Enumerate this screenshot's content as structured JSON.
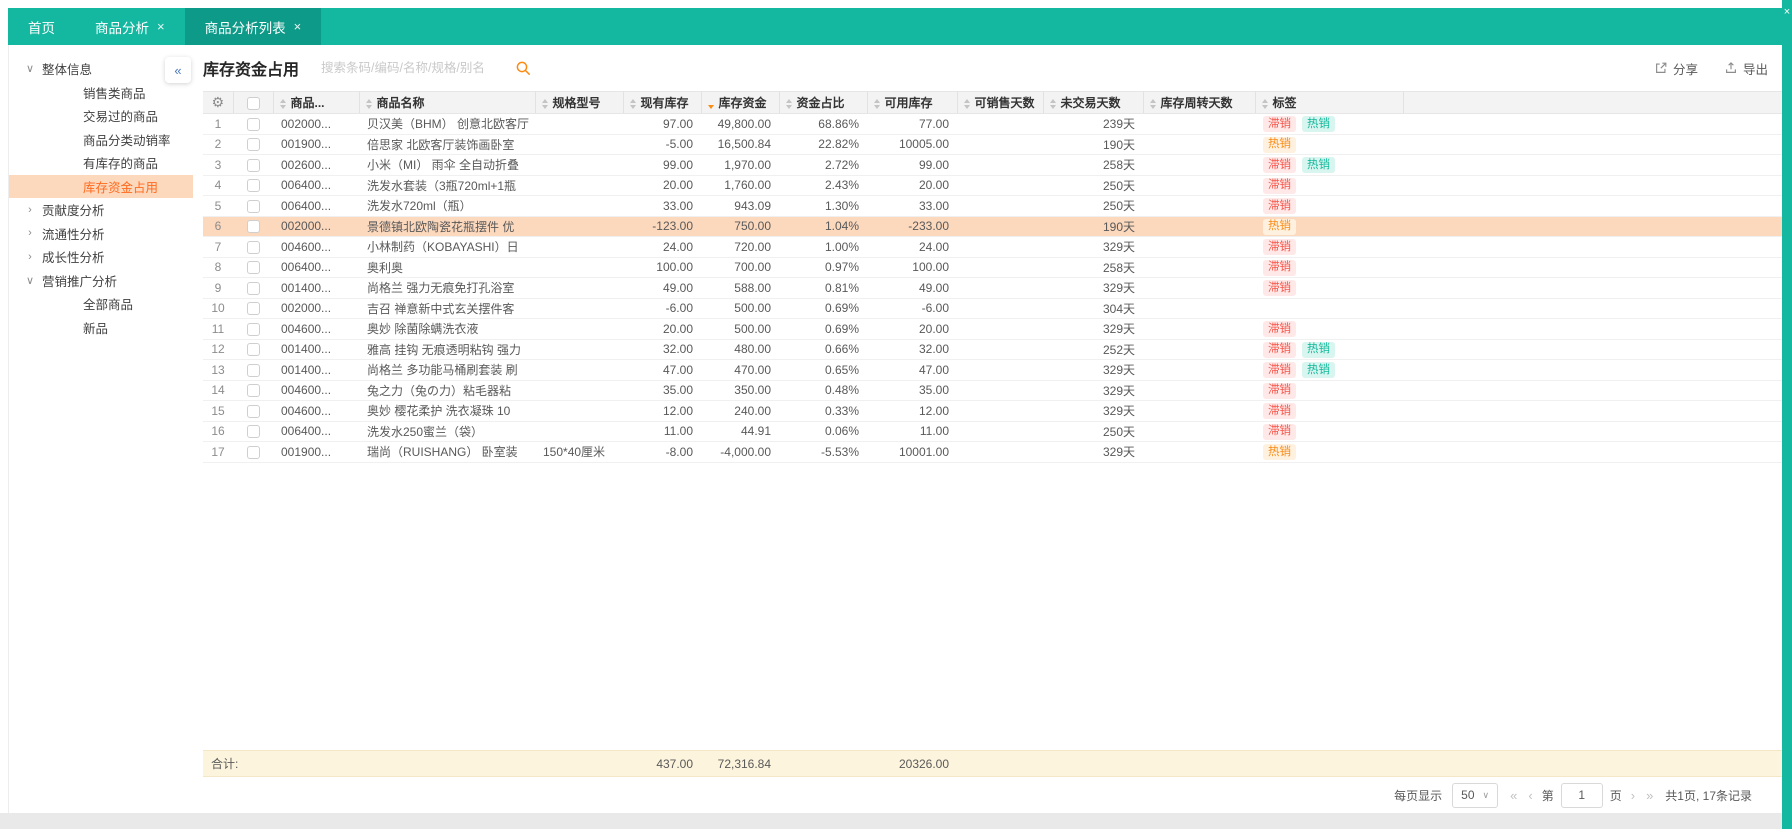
{
  "topbar": {
    "tabs": [
      {
        "label": "首页",
        "closable": false,
        "active": false
      },
      {
        "label": "商品分析",
        "closable": true,
        "active": false
      },
      {
        "label": "商品分析列表",
        "closable": true,
        "active": true
      }
    ],
    "panel_close": "×"
  },
  "sidebar": {
    "collapse_icon": "«",
    "items": [
      {
        "label": "整体信息",
        "level": 0,
        "chevron": "down",
        "active": false
      },
      {
        "label": "销售类商品",
        "level": 1,
        "chevron": "none",
        "active": false
      },
      {
        "label": "交易过的商品",
        "level": 1,
        "chevron": "none",
        "active": false
      },
      {
        "label": "商品分类动销率",
        "level": 1,
        "chevron": "none",
        "active": false
      },
      {
        "label": "有库存的商品",
        "level": 1,
        "chevron": "none",
        "active": false
      },
      {
        "label": "库存资金占用",
        "level": 1,
        "chevron": "none",
        "active": true
      },
      {
        "label": "贡献度分析",
        "level": 0,
        "chevron": "right",
        "active": false
      },
      {
        "label": "流通性分析",
        "level": 0,
        "chevron": "right",
        "active": false
      },
      {
        "label": "成长性分析",
        "level": 0,
        "chevron": "right",
        "active": false
      },
      {
        "label": "营销推广分析",
        "level": 0,
        "chevron": "down",
        "active": false
      },
      {
        "label": "全部商品",
        "level": 1,
        "chevron": "none",
        "active": false
      },
      {
        "label": "新品",
        "level": 1,
        "chevron": "none",
        "active": false
      }
    ]
  },
  "header": {
    "title": "库存资金占用",
    "search_placeholder": "搜索条码/编码/名称/规格/别名",
    "share_label": "分享",
    "export_label": "导出"
  },
  "table": {
    "columns": [
      {
        "label": ""
      },
      {
        "label": ""
      },
      {
        "label": "商品..."
      },
      {
        "label": "商品名称"
      },
      {
        "label": "规格型号"
      },
      {
        "label": "现有库存"
      },
      {
        "label": "库存资金"
      },
      {
        "label": "资金占比"
      },
      {
        "label": "可用库存"
      },
      {
        "label": "可销售天数"
      },
      {
        "label": "未交易天数"
      },
      {
        "label": "库存周转天数"
      },
      {
        "label": "标签"
      }
    ],
    "sorted_column": "库存资金",
    "sorted_direction": "desc",
    "rows": [
      {
        "idx": "1",
        "code": "002000...",
        "name": "贝汉美（BHM） 创意北欧客厅",
        "spec": "",
        "stock": "97.00",
        "funds": "49,800.00",
        "ratio": "68.86%",
        "avail": "77.00",
        "sell_days": "",
        "no_trade_days": "239天",
        "turnover_days": "",
        "highlight": false,
        "tags": [
          {
            "label": "滞销",
            "style": "red"
          },
          {
            "label": "热销",
            "style": "teal"
          }
        ]
      },
      {
        "idx": "2",
        "code": "001900...",
        "name": "倍思家 北欧客厅装饰画卧室",
        "spec": "",
        "stock": "-5.00",
        "funds": "16,500.84",
        "ratio": "22.82%",
        "avail": "10005.00",
        "sell_days": "",
        "no_trade_days": "190天",
        "turnover_days": "",
        "highlight": false,
        "tags": [
          {
            "label": "热销",
            "style": "orange"
          }
        ]
      },
      {
        "idx": "3",
        "code": "002600...",
        "name": "小米（MI） 雨伞 全自动折叠",
        "spec": "",
        "stock": "99.00",
        "funds": "1,970.00",
        "ratio": "2.72%",
        "avail": "99.00",
        "sell_days": "",
        "no_trade_days": "258天",
        "turnover_days": "",
        "highlight": false,
        "tags": [
          {
            "label": "滞销",
            "style": "red"
          },
          {
            "label": "热销",
            "style": "teal"
          }
        ]
      },
      {
        "idx": "4",
        "code": "006400...",
        "name": "洗发水套装（3瓶720ml+1瓶",
        "spec": "",
        "stock": "20.00",
        "funds": "1,760.00",
        "ratio": "2.43%",
        "avail": "20.00",
        "sell_days": "",
        "no_trade_days": "250天",
        "turnover_days": "",
        "highlight": false,
        "tags": [
          {
            "label": "滞销",
            "style": "red"
          }
        ]
      },
      {
        "idx": "5",
        "code": "006400...",
        "name": "洗发水720ml（瓶）",
        "spec": "",
        "stock": "33.00",
        "funds": "943.09",
        "ratio": "1.30%",
        "avail": "33.00",
        "sell_days": "",
        "no_trade_days": "250天",
        "turnover_days": "",
        "highlight": false,
        "tags": [
          {
            "label": "滞销",
            "style": "red"
          }
        ]
      },
      {
        "idx": "6",
        "code": "002000...",
        "name": "景德镇北欧陶瓷花瓶摆件 优",
        "spec": "",
        "stock": "-123.00",
        "funds": "750.00",
        "ratio": "1.04%",
        "avail": "-233.00",
        "sell_days": "",
        "no_trade_days": "190天",
        "turnover_days": "",
        "highlight": true,
        "tags": [
          {
            "label": "热销",
            "style": "orange"
          }
        ]
      },
      {
        "idx": "7",
        "code": "004600...",
        "name": "小林制药（KOBAYASHI）日",
        "spec": "",
        "stock": "24.00",
        "funds": "720.00",
        "ratio": "1.00%",
        "avail": "24.00",
        "sell_days": "",
        "no_trade_days": "329天",
        "turnover_days": "",
        "highlight": false,
        "tags": [
          {
            "label": "滞销",
            "style": "red"
          }
        ]
      },
      {
        "idx": "8",
        "code": "006400...",
        "name": "奥利奥",
        "spec": "",
        "stock": "100.00",
        "funds": "700.00",
        "ratio": "0.97%",
        "avail": "100.00",
        "sell_days": "",
        "no_trade_days": "258天",
        "turnover_days": "",
        "highlight": false,
        "tags": [
          {
            "label": "滞销",
            "style": "red"
          }
        ]
      },
      {
        "idx": "9",
        "code": "001400...",
        "name": "尚格兰 强力无痕免打孔浴室",
        "spec": "",
        "stock": "49.00",
        "funds": "588.00",
        "ratio": "0.81%",
        "avail": "49.00",
        "sell_days": "",
        "no_trade_days": "329天",
        "turnover_days": "",
        "highlight": false,
        "tags": [
          {
            "label": "滞销",
            "style": "red"
          }
        ]
      },
      {
        "idx": "10",
        "code": "002000...",
        "name": "吉召 禅意新中式玄关摆件客",
        "spec": "",
        "stock": "-6.00",
        "funds": "500.00",
        "ratio": "0.69%",
        "avail": "-6.00",
        "sell_days": "",
        "no_trade_days": "304天",
        "turnover_days": "",
        "highlight": false,
        "tags": []
      },
      {
        "idx": "11",
        "code": "004600...",
        "name": "奥妙 除菌除螨洗衣液",
        "spec": "",
        "stock": "20.00",
        "funds": "500.00",
        "ratio": "0.69%",
        "avail": "20.00",
        "sell_days": "",
        "no_trade_days": "329天",
        "turnover_days": "",
        "highlight": false,
        "tags": [
          {
            "label": "滞销",
            "style": "red"
          }
        ]
      },
      {
        "idx": "12",
        "code": "001400...",
        "name": "雅高 挂钩 无痕透明粘钩 强力",
        "spec": "",
        "stock": "32.00",
        "funds": "480.00",
        "ratio": "0.66%",
        "avail": "32.00",
        "sell_days": "",
        "no_trade_days": "252天",
        "turnover_days": "",
        "highlight": false,
        "tags": [
          {
            "label": "滞销",
            "style": "red"
          },
          {
            "label": "热销",
            "style": "teal"
          }
        ]
      },
      {
        "idx": "13",
        "code": "001400...",
        "name": "尚格兰 多功能马桶刷套装 刷",
        "spec": "",
        "stock": "47.00",
        "funds": "470.00",
        "ratio": "0.65%",
        "avail": "47.00",
        "sell_days": "",
        "no_trade_days": "329天",
        "turnover_days": "",
        "highlight": false,
        "tags": [
          {
            "label": "滞销",
            "style": "red"
          },
          {
            "label": "热销",
            "style": "teal"
          }
        ]
      },
      {
        "idx": "14",
        "code": "004600...",
        "name": "兔之力（兔の力）粘毛器粘",
        "spec": "",
        "stock": "35.00",
        "funds": "350.00",
        "ratio": "0.48%",
        "avail": "35.00",
        "sell_days": "",
        "no_trade_days": "329天",
        "turnover_days": "",
        "highlight": false,
        "tags": [
          {
            "label": "滞销",
            "style": "red"
          }
        ]
      },
      {
        "idx": "15",
        "code": "004600...",
        "name": "奥妙 樱花柔护 洗衣凝珠 10",
        "spec": "",
        "stock": "12.00",
        "funds": "240.00",
        "ratio": "0.33%",
        "avail": "12.00",
        "sell_days": "",
        "no_trade_days": "329天",
        "turnover_days": "",
        "highlight": false,
        "tags": [
          {
            "label": "滞销",
            "style": "red"
          }
        ]
      },
      {
        "idx": "16",
        "code": "006400...",
        "name": "洗发水250蜜兰（袋）",
        "spec": "",
        "stock": "11.00",
        "funds": "44.91",
        "ratio": "0.06%",
        "avail": "11.00",
        "sell_days": "",
        "no_trade_days": "250天",
        "turnover_days": "",
        "highlight": false,
        "tags": [
          {
            "label": "滞销",
            "style": "red"
          }
        ]
      },
      {
        "idx": "17",
        "code": "001900...",
        "name": "瑞尚（RUISHANG） 卧室装",
        "spec": "150*40厘米",
        "stock": "-8.00",
        "funds": "-4,000.00",
        "ratio": "-5.53%",
        "avail": "10001.00",
        "sell_days": "",
        "no_trade_days": "329天",
        "turnover_days": "",
        "highlight": false,
        "tags": [
          {
            "label": "热销",
            "style": "orange"
          }
        ]
      }
    ],
    "total": {
      "label": "合计:",
      "stock": "437.00",
      "funds": "72,316.84",
      "avail": "20326.00"
    }
  },
  "pagination": {
    "per_page_label": "每页显示",
    "per_page_value": "50",
    "first": "«",
    "prev": "‹",
    "next": "›",
    "last": "»",
    "page_prefix": "第",
    "page_value": "1",
    "page_suffix": "页",
    "summary": "共1页, 17条记录"
  },
  "colors": {
    "topbar_teal": "#14b8a0",
    "active_tab_teal": "#0e9a88",
    "accent_orange": "#fa8c16",
    "highlight_row": "#fcd8bd",
    "active_nav_text": "#ff6a1e",
    "badge_stale_bg": "#ffe9e8",
    "badge_stale_text": "#f5554a",
    "badge_hot_teal_bg": "#d9f5ef",
    "badge_hot_teal_text": "#13b89c",
    "badge_hot_orange_bg": "#fff1e0",
    "badge_hot_orange_text": "#fa8c16",
    "totals_row_bg": "#fdf4dd"
  }
}
